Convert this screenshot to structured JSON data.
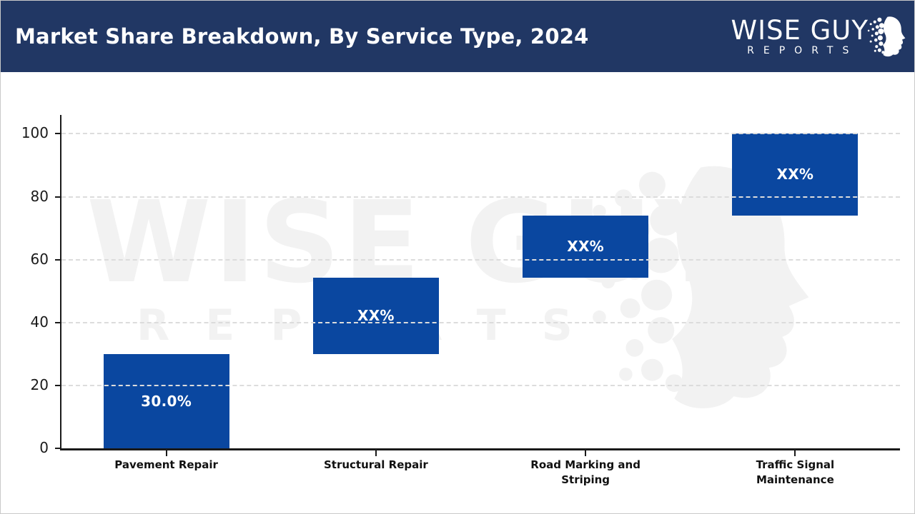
{
  "header": {
    "title": "Market Share Breakdown, By Service Type, 2024",
    "background_color": "#213764",
    "logo": {
      "line1": "WISE GUY",
      "line2": "REPORTS"
    }
  },
  "watermark": {
    "line1": "WISE GUY",
    "line2": "REPORTS"
  },
  "chart_data": {
    "type": "bar",
    "variant": "waterfall",
    "title": "Market Share Breakdown, By Service Type, 2024",
    "xlabel": "",
    "ylabel": "",
    "categories": [
      "Pavement Repair",
      "Structural Repair",
      "Road Marking and Striping",
      "Traffic Signal Maintenance"
    ],
    "segments": [
      {
        "category": "Pavement Repair",
        "start": 0,
        "end": 30.0,
        "label": "30.0%"
      },
      {
        "category": "Structural Repair",
        "start": 30.0,
        "end": 54.3,
        "label": "XX%"
      },
      {
        "category": "Road Marking and Striping",
        "start": 54.3,
        "end": 74.1,
        "label": "XX%"
      },
      {
        "category": "Traffic Signal Maintenance",
        "start": 74.1,
        "end": 100.0,
        "label": "XX%"
      }
    ],
    "yticks": [
      0,
      20,
      40,
      60,
      80,
      100
    ],
    "ylim": [
      0,
      106
    ],
    "grid": "horizontal-dashed",
    "legend": "none",
    "bar_color": "#0a47a0",
    "bar_label_color": "#ffffff",
    "axis_color": "#1a1a1a",
    "grid_color": "#dcdcdc"
  }
}
